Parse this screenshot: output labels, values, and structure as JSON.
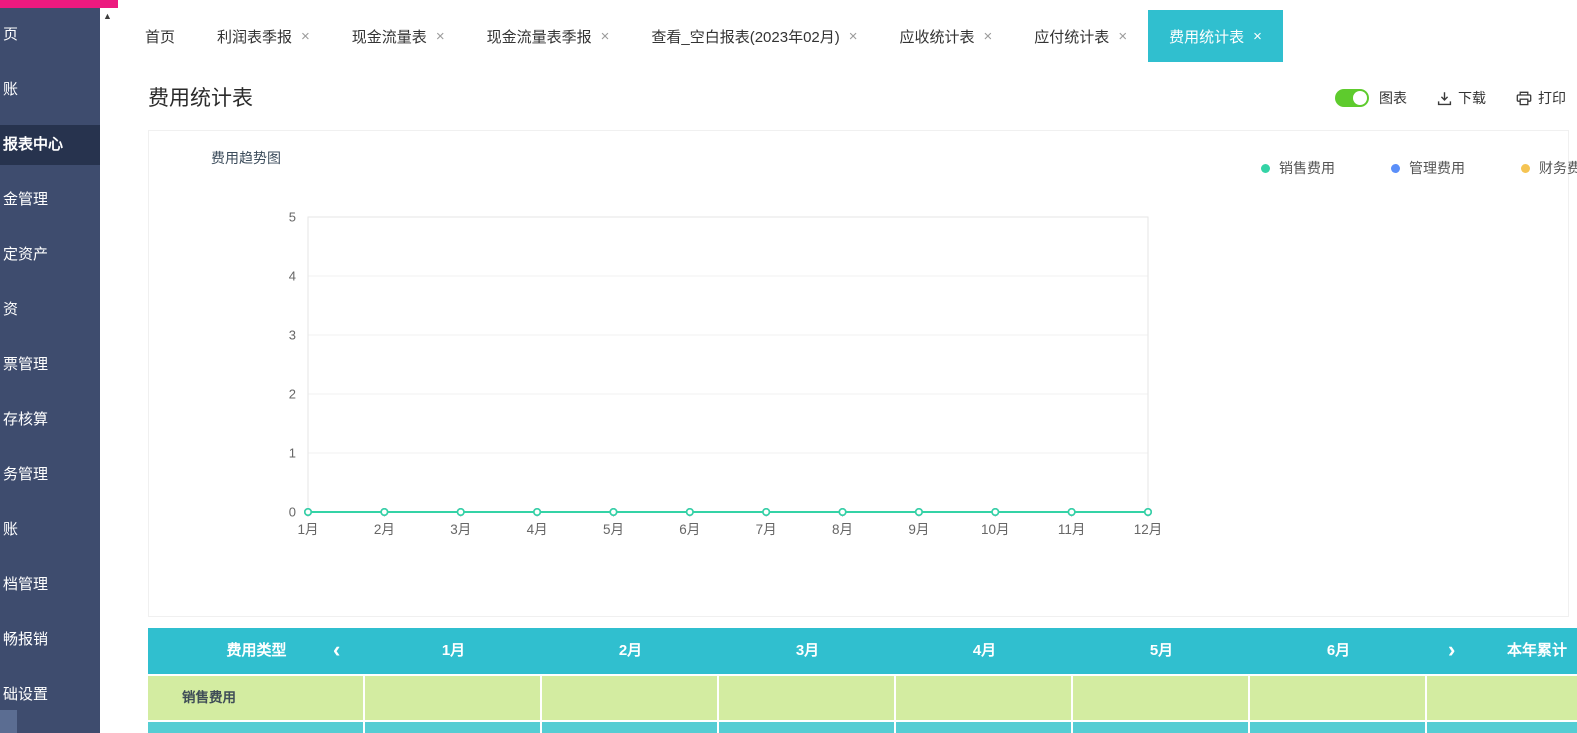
{
  "colors": {
    "accent": "#30bfcf",
    "brand": "#ec1a7f",
    "sidebar-bg": "#3e4c6e",
    "sidebar-active": "#27334e",
    "toggle-on": "#5ecb2d"
  },
  "icons": {
    "scroll_up": "▲",
    "close": "×",
    "prev": "‹",
    "next": "›"
  },
  "sidebar": {
    "items": [
      {
        "label": "页"
      },
      {
        "label": "账"
      },
      {
        "label": "报表中心",
        "active": true
      },
      {
        "label": "金管理"
      },
      {
        "label": "定资产"
      },
      {
        "label": "资"
      },
      {
        "label": "票管理"
      },
      {
        "label": "存核算"
      },
      {
        "label": "务管理"
      },
      {
        "label": "账"
      },
      {
        "label": "档管理"
      },
      {
        "label": "畅报销"
      },
      {
        "label": "础设置"
      }
    ]
  },
  "tabs": [
    {
      "label": "首页",
      "closable": false
    },
    {
      "label": "利润表季报",
      "closable": true
    },
    {
      "label": "现金流量表",
      "closable": true
    },
    {
      "label": "现金流量表季报",
      "closable": true
    },
    {
      "label": "查看_空白报表(2023年02月)",
      "closable": true
    },
    {
      "label": "应收统计表",
      "closable": true
    },
    {
      "label": "应付统计表",
      "closable": true
    },
    {
      "label": "费用统计表",
      "closable": true,
      "active": true
    }
  ],
  "page": {
    "title": "费用统计表"
  },
  "toolbar": {
    "chart_toggle_label": "图表",
    "chart_toggle_on": true,
    "download_label": "下载",
    "print_label": "打印"
  },
  "chart_data": {
    "type": "line",
    "title": "费用趋势图",
    "x_labels": [
      "1月",
      "2月",
      "3月",
      "4月",
      "5月",
      "6月",
      "7月",
      "8月",
      "9月",
      "10月",
      "11月",
      "12月"
    ],
    "y_ticks": [
      0,
      1,
      2,
      3,
      4,
      5
    ],
    "ylim": [
      0,
      5
    ],
    "grid": true,
    "legend_position": "top-right",
    "series": [
      {
        "name": "销售费用",
        "color": "#34d3a6",
        "values": [
          0,
          0,
          0,
          0,
          0,
          0,
          0,
          0,
          0,
          0,
          0,
          0
        ]
      },
      {
        "name": "管理费用",
        "color": "#5b8ff9",
        "values": [
          0,
          0,
          0,
          0,
          0,
          0,
          0,
          0,
          0,
          0,
          0,
          0
        ]
      },
      {
        "name": "财务费用",
        "color": "#f5c453",
        "values": [
          0,
          0,
          0,
          0,
          0,
          0,
          0,
          0,
          0,
          0,
          0,
          0
        ]
      }
    ]
  },
  "table": {
    "columns": [
      "费用类型",
      "1月",
      "2月",
      "3月",
      "4月",
      "5月",
      "6月",
      "本年累计"
    ],
    "row_colors": [
      "#d3eca1",
      "#55cdd3"
    ],
    "rows": [
      {
        "label": "销售费用",
        "values": [
          "",
          "",
          "",
          "",
          "",
          "",
          ""
        ]
      },
      {
        "label": "",
        "values": [
          "",
          "",
          "",
          "",
          "",
          "",
          ""
        ]
      }
    ]
  }
}
